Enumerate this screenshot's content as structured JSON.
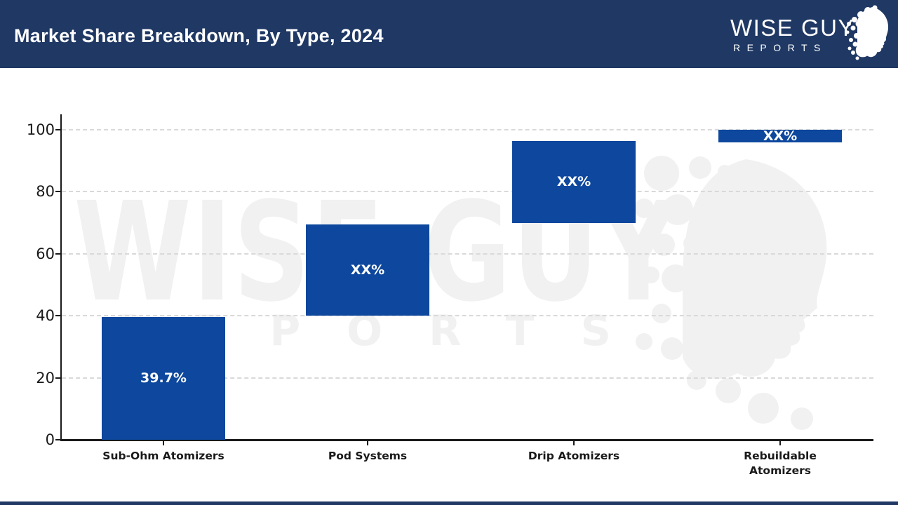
{
  "header": {
    "title": "Market Share Breakdown, By Type, 2024",
    "logo": {
      "brand_line1": "WISE GUY",
      "brand_line2": "REPORTS"
    }
  },
  "watermark": {
    "line1": "WISE GUY",
    "line2": "REPORTS"
  },
  "colors": {
    "header_bg": "#1f3864",
    "bar_fill": "#0d479e",
    "bar_label_text": "#ffffff",
    "title_text": "#ffffff",
    "axis_text": "#1a1a1a",
    "gridline": "#d9d9d9",
    "watermark": "#f1f1f2",
    "background": "#ffffff"
  },
  "chart_data": {
    "type": "bar",
    "subtype": "waterfall-segments",
    "title": "Market Share Breakdown, By Type, 2024",
    "categories": [
      "Sub-Ohm Atomizers",
      "Pod Systems",
      "Drip Atomizers",
      "Rebuildable Atomizers"
    ],
    "segments": [
      {
        "category": "Sub-Ohm Atomizers",
        "start": 0,
        "end": 39.7,
        "label": "39.7%",
        "tick_lines": [
          "Sub-Ohm Atomizers"
        ]
      },
      {
        "category": "Pod Systems",
        "start": 40,
        "end": 69.5,
        "label": "XX%",
        "tick_lines": [
          "Pod Systems"
        ]
      },
      {
        "category": "Drip Atomizers",
        "start": 70,
        "end": 96.3,
        "label": "XX%",
        "tick_lines": [
          "Drip Atomizers"
        ]
      },
      {
        "category": "Rebuildable Atomizers",
        "start": 95.9,
        "end": 100,
        "label": "XX%",
        "tick_lines": [
          "Rebuildable",
          "Atomizers"
        ]
      }
    ],
    "xlabel": "",
    "ylabel": "",
    "yticks": [
      0,
      20,
      40,
      60,
      80,
      100
    ],
    "ylim": [
      0,
      105
    ],
    "grid": "horizontal-dashed",
    "legend": "none"
  }
}
